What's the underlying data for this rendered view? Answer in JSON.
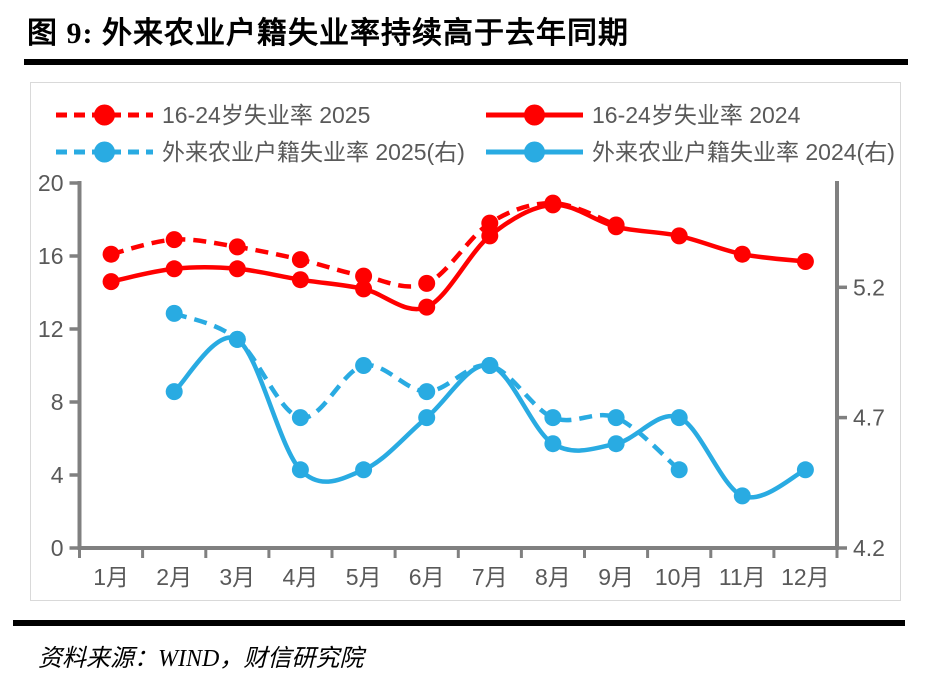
{
  "page": {
    "title": "图 9:  外来农业户籍失业率持续高于去年同期",
    "source": "资料来源：WIND，财信研究院"
  },
  "colors": {
    "red": "#FF0000",
    "blue": "#29ABE2",
    "axis_line": "#808080",
    "tick_label": "#595959",
    "frame_border": "#D9D9D9",
    "divider": "#000000"
  },
  "chart_data": {
    "type": "line",
    "title": "外来农业户籍失业率持续高于去年同期",
    "categories": [
      "1月",
      "2月",
      "3月",
      "4月",
      "5月",
      "6月",
      "7月",
      "8月",
      "9月",
      "10月",
      "11月",
      "12月"
    ],
    "left_axis": {
      "min": 0,
      "max": 20,
      "ticks": [
        0,
        4,
        8,
        12,
        16,
        20
      ]
    },
    "right_axis": {
      "min": 4.2,
      "max": 5.6,
      "ticks": [
        4.2,
        4.7,
        5.2
      ]
    },
    "grid": false,
    "legend_position": "top",
    "series": [
      {
        "name": "16-24岁失业率 2025",
        "axis": "left",
        "color": "#FF0000",
        "style": "dashed",
        "values": [
          16.1,
          16.9,
          16.5,
          15.8,
          14.9,
          14.5,
          17.8,
          18.9,
          17.7,
          null,
          null,
          null
        ]
      },
      {
        "name": "16-24岁失业率 2024",
        "axis": "left",
        "color": "#FF0000",
        "style": "solid",
        "values": [
          14.6,
          15.3,
          15.3,
          14.7,
          14.2,
          13.2,
          17.1,
          18.8,
          17.6,
          17.1,
          16.1,
          15.7
        ]
      },
      {
        "name": "外来农业户籍失业率 2025(右)",
        "axis": "right",
        "color": "#29ABE2",
        "style": "dashed",
        "values": [
          null,
          5.1,
          5.0,
          4.7,
          4.9,
          4.8,
          4.9,
          4.7,
          4.7,
          4.5,
          null,
          null
        ]
      },
      {
        "name": "外来农业户籍失业率 2024(右)",
        "axis": "right",
        "color": "#29ABE2",
        "style": "solid",
        "values": [
          null,
          4.8,
          5.0,
          4.5,
          4.5,
          4.7,
          4.9,
          4.6,
          4.6,
          4.7,
          4.4,
          4.5
        ]
      }
    ]
  }
}
